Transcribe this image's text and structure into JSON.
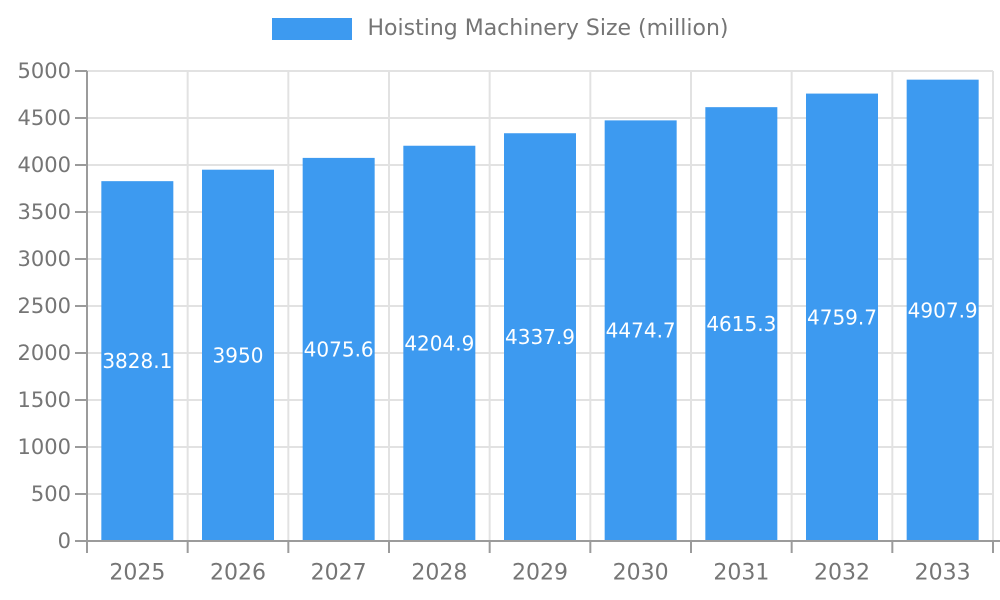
{
  "legend": {
    "label": "Hoisting Machinery Size (million)"
  },
  "colors": {
    "bar": "#3d9af0",
    "grid": "#e2e2e2",
    "axis": "#9b9b9b",
    "tick": "#9b9b9b",
    "axis_text": "#757575",
    "value_label": "#ffffff",
    "background": "#ffffff"
  },
  "chart_data": {
    "type": "bar",
    "title": "Hoisting Machinery Size (million)",
    "categories": [
      "2025",
      "2026",
      "2027",
      "2028",
      "2029",
      "2030",
      "2031",
      "2032",
      "2033"
    ],
    "values": [
      3828.1,
      3950,
      4075.6,
      4204.9,
      4337.9,
      4474.7,
      4615.3,
      4759.7,
      4907.9
    ],
    "value_labels": [
      "3828.1",
      "3950",
      "4075.6",
      "4204.9",
      "4337.9",
      "4474.7",
      "4615.3",
      "4759.7",
      "4907.9"
    ],
    "xlabel": "",
    "ylabel": "",
    "ylim": [
      0,
      5000
    ],
    "ytick_step": 500,
    "ytick_labels": [
      "0",
      "500",
      "1000",
      "1500",
      "2000",
      "2500",
      "3000",
      "3500",
      "4000",
      "4500",
      "5000"
    ],
    "grid": true,
    "legend_position": "top",
    "value_label_position": "center-of-bar"
  }
}
